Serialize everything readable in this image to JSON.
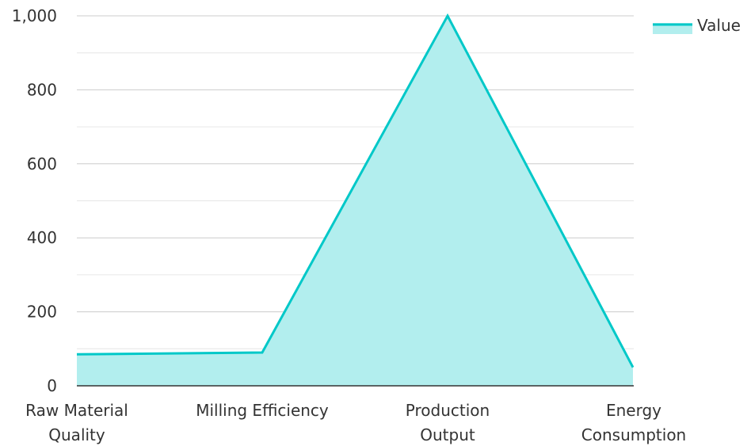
{
  "chart_data": {
    "type": "area",
    "categories": [
      [
        "Raw Material",
        "Quality"
      ],
      [
        "Milling Efficiency"
      ],
      [
        "Production",
        "Output"
      ],
      [
        "Energy",
        "Consumption"
      ]
    ],
    "series": [
      {
        "name": "Value",
        "values": [
          85,
          90,
          1000,
          50
        ]
      }
    ],
    "ylim": [
      0,
      1000
    ],
    "yticks": [
      0,
      200,
      400,
      600,
      800,
      1000
    ],
    "ytick_labels": [
      "0",
      "200",
      "400",
      "600",
      "800",
      "1,000"
    ],
    "grid": true,
    "legend_position": "top-right",
    "colors": {
      "line": "#00c8c8",
      "fill": "#b2eeee",
      "grid": "#dddddd",
      "axis": "#333333"
    }
  }
}
